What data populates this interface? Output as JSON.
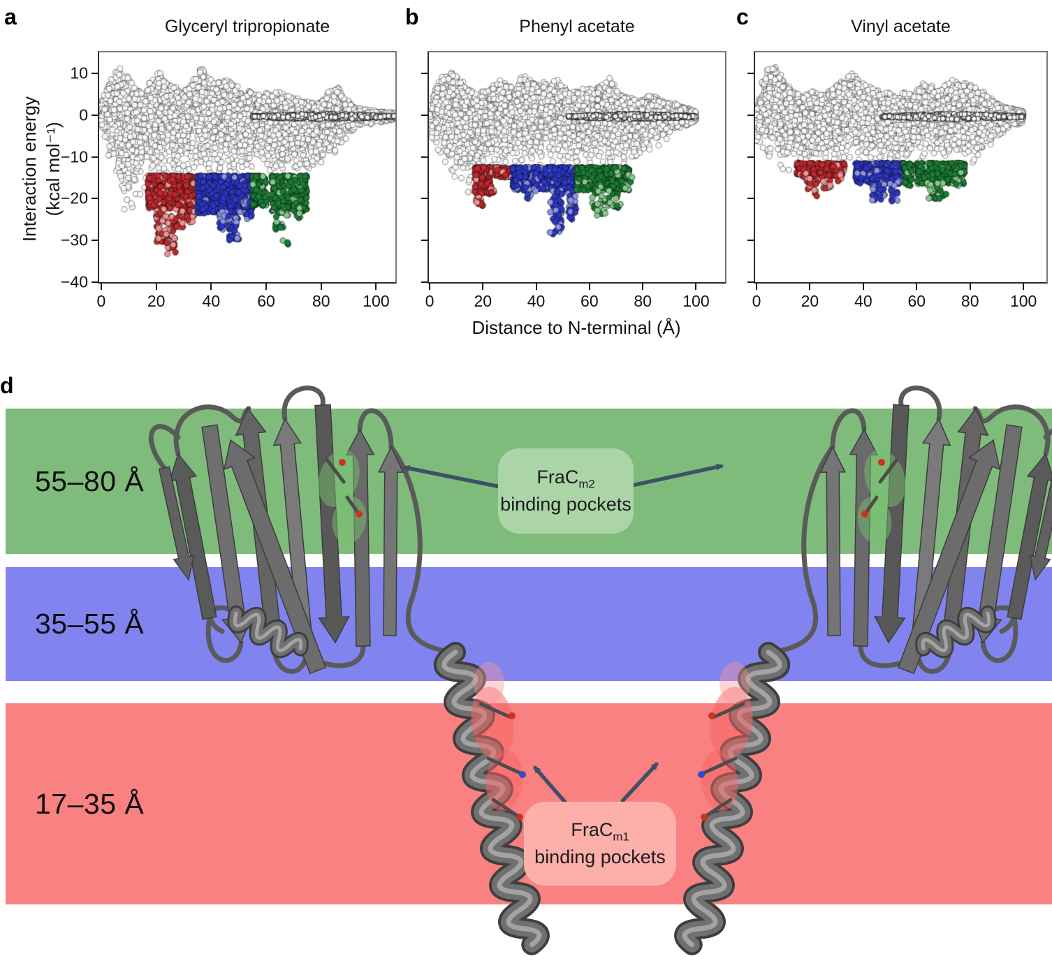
{
  "figure_labels": {
    "panel_a": "a",
    "panel_b": "b",
    "panel_c": "c",
    "panel_d": "d"
  },
  "axes": {
    "ylabel_line1": "Interaction energy",
    "ylabel_line2": "(kcal mol⁻¹)",
    "xlabel": "Distance to N-terminal (Å)",
    "xtick_labels": [
      "0",
      "20",
      "40",
      "60",
      "80",
      "100"
    ],
    "ytick_labels": [
      "10",
      "0",
      "−10",
      "−20",
      "−30",
      "−40"
    ]
  },
  "chart_data": [
    {
      "type": "scatter",
      "title": "Glyceryl tripropionate",
      "xlabel": "Distance to N-terminal (Å)",
      "ylabel": "Interaction energy (kcal mol⁻¹)",
      "xticks": [
        0,
        20,
        40,
        60,
        80,
        100
      ],
      "yticks": [
        10,
        0,
        -10,
        -20,
        -30,
        -40
      ],
      "xlim": [
        -0.75,
        107
      ],
      "ylim": [
        -40,
        15
      ],
      "grid": false,
      "legend": false,
      "gray_cloud": {
        "marker": "open-circle",
        "n": 3400,
        "envelope": [
          [
            0,
            4,
            -4
          ],
          [
            3,
            8,
            -12
          ],
          [
            6,
            12,
            -20
          ],
          [
            9,
            10,
            -26
          ],
          [
            12,
            7,
            -24
          ],
          [
            15,
            6,
            -21
          ],
          [
            18,
            9,
            -18
          ],
          [
            21,
            11,
            -20
          ],
          [
            24,
            8,
            -17
          ],
          [
            27,
            7,
            -16
          ],
          [
            30,
            6,
            -15
          ],
          [
            33,
            8,
            -16
          ],
          [
            36,
            12,
            -16
          ],
          [
            38,
            10,
            -15
          ],
          [
            41,
            8,
            -15
          ],
          [
            44,
            9,
            -15
          ],
          [
            47,
            8,
            -16
          ],
          [
            50,
            7,
            -15
          ],
          [
            53,
            6,
            -14
          ],
          [
            56,
            5,
            -14
          ],
          [
            59,
            6,
            -14
          ],
          [
            62,
            5,
            -15
          ],
          [
            65,
            6,
            -15
          ],
          [
            68,
            5,
            -16
          ],
          [
            71,
            4,
            -16
          ],
          [
            74,
            4,
            -15
          ],
          [
            77,
            3,
            -14
          ],
          [
            80,
            3,
            -12
          ],
          [
            83,
            6,
            -11
          ],
          [
            86,
            7,
            -9
          ],
          [
            89,
            4,
            -6
          ],
          [
            92,
            2,
            -4
          ],
          [
            95,
            1.5,
            -3
          ],
          [
            100,
            1,
            -2
          ],
          [
            107,
            0.5,
            -1.5
          ]
        ],
        "zero_line": {
          "x0": 55,
          "x1": 107,
          "y": -0.35,
          "n": 520
        }
      },
      "pockets": [
        {
          "name": "17–35 Å",
          "color": "#c3272b",
          "light_color": "#ef9494",
          "boxes": [
            [
              17,
              35,
              -14.5,
              -22.5,
              480
            ]
          ],
          "deep": [
            [
              20,
              23,
              -22,
              -30.5,
              40
            ],
            [
              23,
              27,
              -24,
              -33.5,
              38
            ],
            [
              27,
              30,
              -21,
              -27,
              26
            ],
            [
              31,
              34,
              -20,
              -26,
              22
            ]
          ]
        },
        {
          "name": "35–55 Å",
          "color": "#2a35c8",
          "light_color": "#8b93e8",
          "boxes": [
            [
              35,
              55,
              -14.5,
              -23.5,
              640
            ]
          ],
          "deep": [
            [
              43,
              47,
              -23,
              -27.5,
              30
            ],
            [
              46,
              50,
              -24,
              -30,
              28
            ],
            [
              52,
              55,
              -20,
              -25,
              18
            ]
          ]
        },
        {
          "name": "55–80 Å",
          "color": "#187d33",
          "light_color": "#85c98a",
          "boxes": [
            [
              55,
              60,
              -14.5,
              -22,
              150
            ],
            [
              62,
              75,
              -14.5,
              -23,
              330
            ]
          ],
          "deep": [
            [
              63,
              68,
              -22,
              -27.5,
              22
            ],
            [
              66,
              68,
              -30,
              -32.5,
              3
            ],
            [
              70,
              73,
              -20,
              -25,
              14
            ]
          ]
        }
      ]
    },
    {
      "type": "scatter",
      "title": "Phenyl acetate",
      "xlabel": "Distance to N-terminal (Å)",
      "ylabel": "Interaction energy (kcal mol⁻¹)",
      "xticks": [
        0,
        20,
        40,
        60,
        80,
        100
      ],
      "yticks": [
        10,
        0,
        -10,
        -20,
        -30,
        -40
      ],
      "xlim": [
        -0.26,
        110.9
      ],
      "ylim": [
        -40,
        15
      ],
      "grid": false,
      "legend": false,
      "gray_cloud": {
        "marker": "open-circle",
        "n": 3300,
        "envelope": [
          [
            0,
            2,
            -5
          ],
          [
            2,
            6,
            -8
          ],
          [
            5,
            10,
            -13
          ],
          [
            8,
            11,
            -15
          ],
          [
            11,
            9,
            -16
          ],
          [
            14,
            7,
            -20
          ],
          [
            16,
            6,
            -21
          ],
          [
            18,
            5,
            -18
          ],
          [
            20,
            6,
            -15
          ],
          [
            23,
            7,
            -13
          ],
          [
            26,
            9,
            -13
          ],
          [
            29,
            8,
            -12.5
          ],
          [
            32,
            7,
            -12.5
          ],
          [
            35,
            10,
            -13
          ],
          [
            38,
            9,
            -12.5
          ],
          [
            41,
            8,
            -13
          ],
          [
            44,
            8,
            -12.5
          ],
          [
            47,
            9,
            -12.5
          ],
          [
            50,
            7,
            -12.5
          ],
          [
            53,
            6,
            -12.5
          ],
          [
            56,
            6,
            -12.5
          ],
          [
            59,
            7,
            -12.5
          ],
          [
            62,
            6,
            -13
          ],
          [
            65,
            8,
            -12.5
          ],
          [
            68,
            9,
            -12.5
          ],
          [
            71,
            6,
            -12.5
          ],
          [
            74,
            5,
            -12.5
          ],
          [
            77,
            4,
            -12
          ],
          [
            80,
            4,
            -11
          ],
          [
            83,
            5,
            -10
          ],
          [
            86,
            4,
            -8
          ],
          [
            89,
            3,
            -6
          ],
          [
            92,
            3,
            -4
          ],
          [
            95,
            2,
            -3
          ],
          [
            100,
            1,
            -2
          ]
        ],
        "zero_line": {
          "x0": 52,
          "x1": 100,
          "y": -0.35,
          "n": 470
        }
      },
      "pockets": [
        {
          "name": "17–35 Å",
          "color": "#c3272b",
          "light_color": "#ef9494",
          "boxes": [
            [
              17,
              23,
              -12.5,
              -19,
              210
            ],
            [
              23,
              31,
              -12.5,
              -15,
              70
            ]
          ],
          "deep": [
            [
              17,
              20,
              -19,
              -22.5,
              16
            ],
            [
              22,
              25,
              -17,
              -20,
              8
            ]
          ]
        },
        {
          "name": "35–55 Å",
          "color": "#2a35c8",
          "light_color": "#8b93e8",
          "boxes": [
            [
              31,
              55,
              -12.5,
              -18,
              520
            ]
          ],
          "deep": [
            [
              45,
              50,
              -18,
              -28.5,
              48
            ],
            [
              52,
              55,
              -18,
              -25,
              26
            ],
            [
              36,
              40,
              -16,
              -20,
              14
            ]
          ]
        },
        {
          "name": "55–80 Å",
          "color": "#187d33",
          "light_color": "#85c98a",
          "boxes": [
            [
              55,
              75,
              -12.5,
              -18,
              420
            ]
          ],
          "deep": [
            [
              61,
              66,
              -18,
              -24,
              24
            ],
            [
              67,
              72,
              -18,
              -22.5,
              18
            ],
            [
              73,
              76,
              -14,
              -18,
              8
            ]
          ]
        }
      ]
    },
    {
      "type": "scatter",
      "title": "Vinyl acetate",
      "xlabel": "Distance to N-terminal (Å)",
      "ylabel": "Interaction energy (kcal mol⁻¹)",
      "xticks": [
        0,
        20,
        40,
        60,
        80,
        100
      ],
      "yticks": [
        10,
        0,
        -10,
        -20,
        -30,
        -40
      ],
      "xlim": [
        -0.52,
        108.6
      ],
      "ylim": [
        -40,
        15
      ],
      "grid": false,
      "legend": false,
      "gray_cloud": {
        "marker": "open-circle",
        "n": 3200,
        "envelope": [
          [
            0,
            2,
            -7
          ],
          [
            2,
            8,
            -11
          ],
          [
            4,
            11,
            -13
          ],
          [
            7,
            12,
            -13.5
          ],
          [
            10,
            9,
            -14
          ],
          [
            13,
            6,
            -13
          ],
          [
            16,
            5,
            -12.5
          ],
          [
            19,
            5,
            -12
          ],
          [
            22,
            6,
            -11.5
          ],
          [
            25,
            5,
            -11.5
          ],
          [
            28,
            6,
            -11.5
          ],
          [
            31,
            8,
            -12
          ],
          [
            34,
            10,
            -12
          ],
          [
            36,
            11,
            -12
          ],
          [
            39,
            8,
            -12
          ],
          [
            42,
            7,
            -12
          ],
          [
            45,
            6,
            -12
          ],
          [
            48,
            6,
            -12
          ],
          [
            51,
            5,
            -11.5
          ],
          [
            54,
            5,
            -11.5
          ],
          [
            57,
            6,
            -11.5
          ],
          [
            60,
            7,
            -11.5
          ],
          [
            63,
            8,
            -12
          ],
          [
            66,
            7,
            -12
          ],
          [
            69,
            6,
            -12
          ],
          [
            72,
            8,
            -11.5
          ],
          [
            75,
            9,
            -11.5
          ],
          [
            78,
            8,
            -12
          ],
          [
            81,
            7,
            -12
          ],
          [
            84,
            6,
            -10
          ],
          [
            87,
            5,
            -8
          ],
          [
            90,
            3,
            -6
          ],
          [
            93,
            2,
            -4
          ],
          [
            100,
            1,
            -2
          ]
        ],
        "zero_line": {
          "x0": 47,
          "x1": 100,
          "y": -0.35,
          "n": 470
        }
      },
      "pockets": [
        {
          "name": "17–35 Å",
          "color": "#c3272b",
          "light_color": "#ef9494",
          "boxes": [
            [
              15,
              33,
              -11.5,
              -15,
              200
            ]
          ],
          "deep": [
            [
              19,
              23,
              -15,
              -19.5,
              22
            ],
            [
              25,
              28,
              -15,
              -18,
              12
            ],
            [
              30,
              32,
              -13.5,
              -16,
              6
            ]
          ]
        },
        {
          "name": "35–55 Å",
          "color": "#2a35c8",
          "light_color": "#8b93e8",
          "boxes": [
            [
              37,
              55,
              -11.5,
              -16.5,
              340
            ]
          ],
          "deep": [
            [
              43,
              48,
              -16,
              -20.5,
              26
            ],
            [
              50,
              53,
              -16,
              -21,
              16
            ]
          ]
        },
        {
          "name": "55–80 Å",
          "color": "#187d33",
          "light_color": "#85c98a",
          "boxes": [
            [
              55,
              58,
              -11.5,
              -17,
              60
            ],
            [
              60,
              78,
              -11.5,
              -16.5,
              300
            ]
          ],
          "deep": [
            [
              64,
              71,
              -16,
              -20,
              28
            ],
            [
              74,
              77,
              -13.5,
              -17,
              10
            ]
          ]
        }
      ]
    }
  ],
  "panel_d": {
    "zones": [
      {
        "label": "55–80 Å",
        "color": "#7fbc7b"
      },
      {
        "label": "35–55 Å",
        "color": "#8184ee"
      },
      {
        "label": "17–35 Å",
        "color": "#f98181"
      }
    ],
    "callouts": [
      {
        "main": "FraC",
        "sub": "m2",
        "line2": "binding pockets",
        "box_color": "#abd5a6"
      },
      {
        "main": "FraC",
        "sub": "m1",
        "line2": "binding pockets",
        "box_color": "#fdafaa"
      }
    ],
    "arrow_color": "#3d5166",
    "protein_color": "#6e6e6e"
  }
}
